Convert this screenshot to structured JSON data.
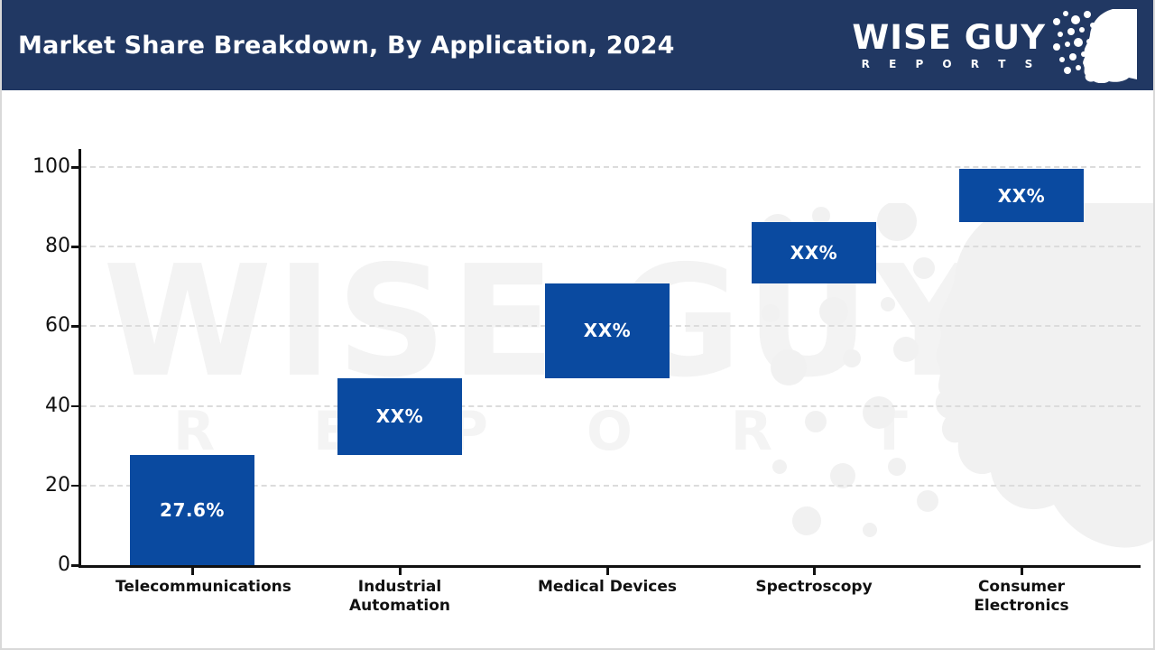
{
  "header": {
    "title": "Market Share Breakdown, By Application, 2024",
    "bg_color": "#213863",
    "logo": {
      "wordmark": "WISE GUY",
      "subtitle": "R E P O R T S"
    }
  },
  "watermark": {
    "line1": "WISE GUY",
    "line2": "R E P O R T S"
  },
  "chart_data": {
    "type": "bar",
    "subtype": "waterfall",
    "title": "Market Share Breakdown, By Application, 2024",
    "xlabel": "",
    "ylabel": "",
    "categories": [
      "Telecommunications",
      "Industrial Automation",
      "Medical Devices",
      "Spectroscopy",
      "Consumer Electronics"
    ],
    "segments": [
      {
        "category": "Telecommunications",
        "start": 0,
        "end": 27.6,
        "label": "27.6%"
      },
      {
        "category": "Industrial Automation",
        "start": 27.6,
        "end": 47.0,
        "label": "XX%"
      },
      {
        "category": "Medical Devices",
        "start": 47.0,
        "end": 70.7,
        "label": "XX%"
      },
      {
        "category": "Spectroscopy",
        "start": 70.7,
        "end": 86.2,
        "label": "XX%"
      },
      {
        "category": "Consumer Electronics",
        "start": 86.2,
        "end": 99.5,
        "label": "XX%"
      }
    ],
    "y_ticks": [
      0,
      20,
      40,
      60,
      80,
      100
    ],
    "ylim": [
      0,
      104
    ],
    "grid": "dashed-horizontal",
    "legend": "none",
    "bar_color": "#0a4aa0",
    "bar_label_color": "#ffffff",
    "axis_color": "#111111",
    "grid_color": "#dcdcdc"
  }
}
